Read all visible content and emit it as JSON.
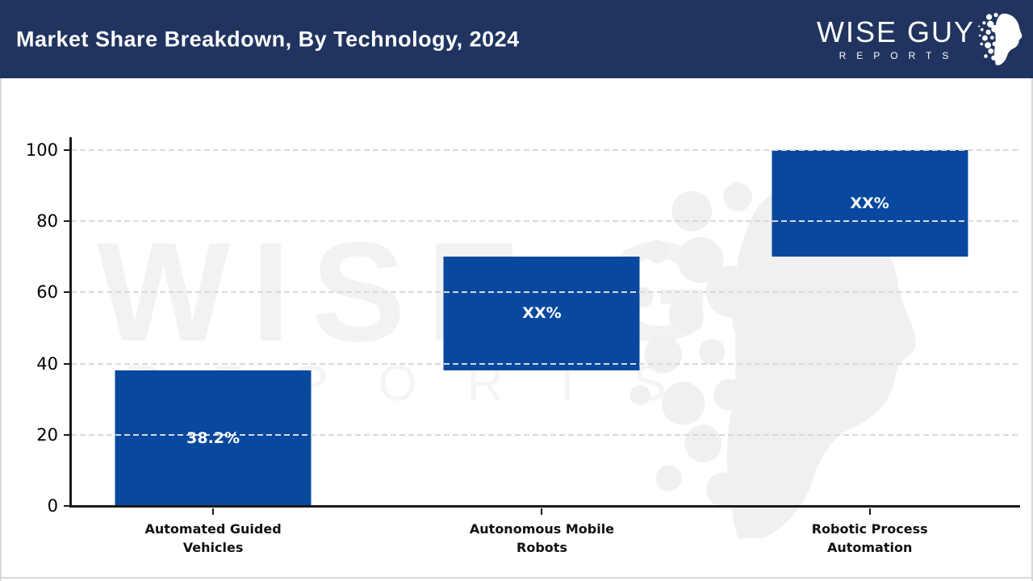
{
  "header": {
    "title": "Market Share Breakdown, By Technology, 2024"
  },
  "logo": {
    "line1": "WISE GUY",
    "line2": "REPORTS"
  },
  "watermark": {
    "line1": "WISE GU",
    "line2": "REPORTS"
  },
  "chart_data": {
    "type": "bar",
    "subtype": "waterfall-floating-bars",
    "title": "Market Share Breakdown, By Technology, 2024",
    "xlabel": "",
    "ylabel": "",
    "categories": [
      "Automated Guided\nVehicles",
      "Autonomous Mobile\nRobots",
      "Robotic Process\nAutomation"
    ],
    "bars": [
      {
        "category": "Automated Guided Vehicles",
        "start": 0,
        "end": 38.2,
        "label": "38.2%"
      },
      {
        "category": "Autonomous Mobile Robots",
        "start": 38.2,
        "end": 70,
        "label": "XX%"
      },
      {
        "category": "Robotic Process Automation",
        "start": 70,
        "end": 100,
        "label": "XX%"
      }
    ],
    "ylim": [
      0,
      100
    ],
    "yticks": [
      0,
      20,
      40,
      60,
      80,
      100
    ],
    "grid": "horizontal-dashed",
    "legend": "none"
  },
  "colors": {
    "header_bg": "#20345f",
    "bar": "#08489e",
    "grid": "#d9d9d9",
    "axis": "#1a1a1a",
    "watermark": "#f2f2f2",
    "category_text": "#111111",
    "bar_label_text": "#ffffff"
  }
}
